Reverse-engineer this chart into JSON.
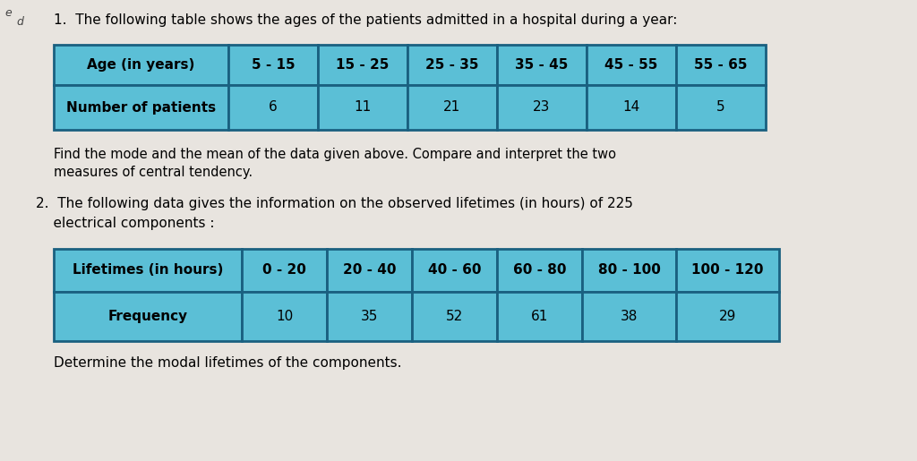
{
  "bg_color": "#e8e4df",
  "title1": "1.  The following table shows the ages of the patients admitted in a hospital during a year:",
  "table1_headers": [
    "Age (in years)",
    "5 - 15",
    "15 - 25",
    "25 - 35",
    "35 - 45",
    "45 - 55",
    "55 - 65"
  ],
  "table1_row_label": "Number of patients",
  "table1_values": [
    "6",
    "11",
    "21",
    "23",
    "14",
    "5"
  ],
  "para1_line1": "Find the mode and the mean of the data given above. Compare and interpret the two",
  "para1_line2": "measures of central tendency.",
  "title2_line1": "2.  The following data gives the information on the observed lifetimes (in hours) of 225",
  "title2_line2": "    electrical components :",
  "table2_headers": [
    "Lifetimes (in hours)",
    "0 - 20",
    "20 - 40",
    "40 - 60",
    "60 - 80",
    "80 - 100",
    "100 - 120"
  ],
  "table2_row_label": "Frequency",
  "table2_values": [
    "10",
    "35",
    "52",
    "61",
    "38",
    "29"
  ],
  "para2": "Determine the modal lifetimes of the components.",
  "cell_bg": "#5bbfd6",
  "border_color": "#1a6080",
  "text_color": "#000000",
  "letter_e": "e",
  "letter_d": "d"
}
